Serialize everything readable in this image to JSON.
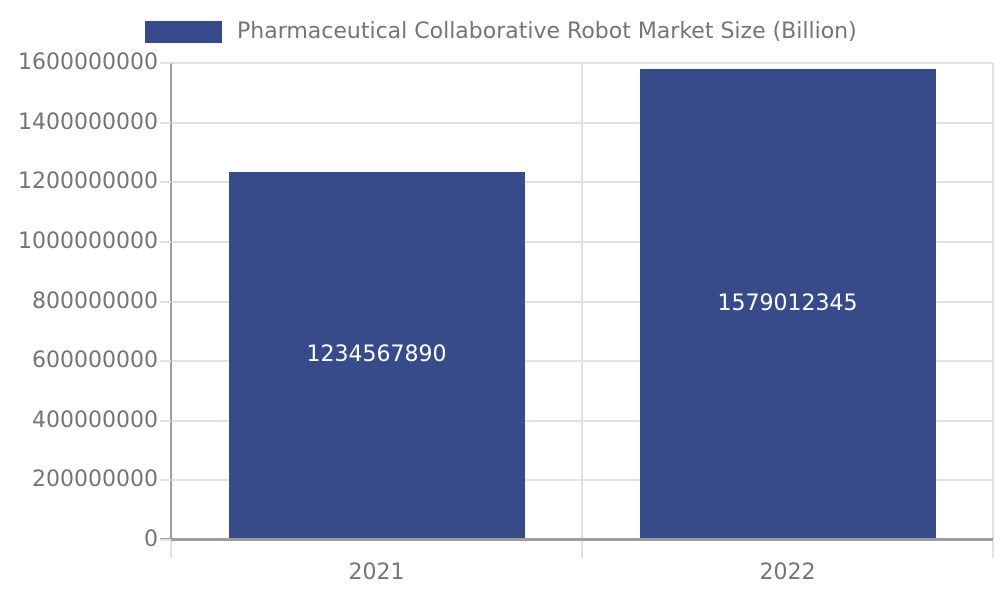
{
  "legend": {
    "label": "Pharmaceutical Collaborative Robot Market Size (Billion)"
  },
  "chart_data": {
    "type": "bar",
    "title": "Pharmaceutical Collaborative Robot Market Size (Billion)",
    "categories": [
      "2021",
      "2022"
    ],
    "values": [
      1234567890,
      1579012345
    ],
    "value_labels": [
      "1234567890",
      "1579012345"
    ],
    "xlabel": "",
    "ylabel": "",
    "ylim": [
      0,
      1600000000
    ],
    "yticks": [
      0,
      200000000,
      400000000,
      600000000,
      800000000,
      1000000000,
      1200000000,
      1400000000,
      1600000000
    ],
    "ytick_labels": [
      "0",
      "200000000",
      "400000000",
      "600000000",
      "800000000",
      "1000000000",
      "1200000000",
      "1400000000",
      "1600000000"
    ],
    "grid": true,
    "legend_position": "top-left",
    "bar_label_position": "center"
  },
  "colors": {
    "bar": "#374A8A",
    "bar_label": "#FFFFFF",
    "axis": "#9E9E9E",
    "grid": "#E2E2E2",
    "text": "#757575",
    "background": "#FFFFFF"
  }
}
